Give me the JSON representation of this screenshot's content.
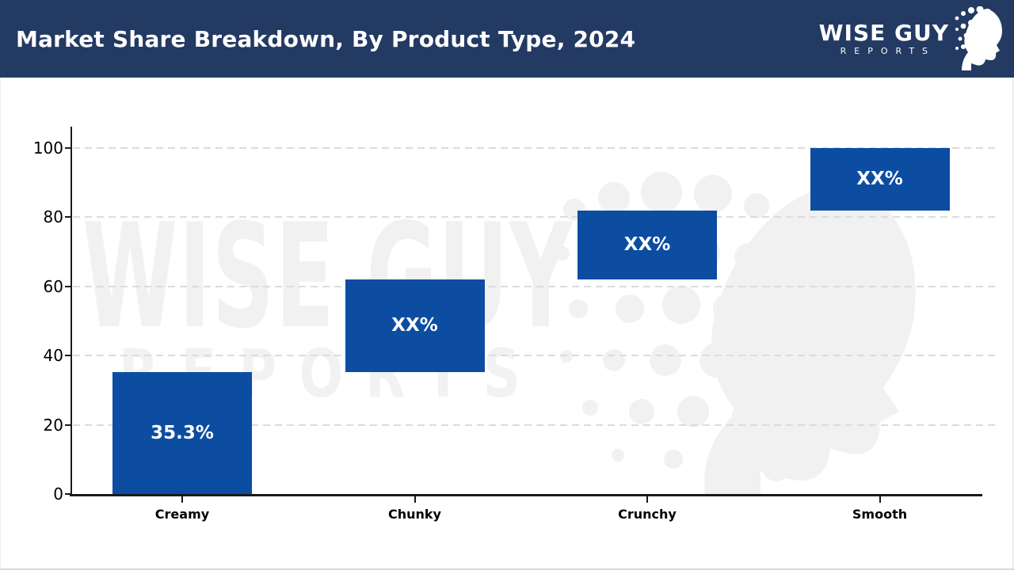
{
  "header": {
    "title": "Market Share Breakdown, By Product Type, 2024",
    "logo": {
      "name": "WISE GUY REPORTS",
      "line1": "WISE GUY",
      "line2": "REPORTS"
    }
  },
  "watermark": {
    "line1": "WISE GUY",
    "line2": "REPORTS"
  },
  "colors": {
    "header_bg": "#233a63",
    "bar": "#0c4da2",
    "bar_label": "#ffffff",
    "grid": "#dcdcdc",
    "axis": "#1a1a1a",
    "watermark": "#f1f1f1",
    "page_bg": "#ffffff"
  },
  "chart_data": {
    "type": "bar",
    "subtype": "waterfall-floating-bars",
    "title": "Market Share Breakdown, By Product Type, 2024",
    "categories": [
      "Creamy",
      "Chunky",
      "Crunchy",
      "Smooth"
    ],
    "segments": [
      {
        "category": "Creamy",
        "start": 0,
        "end": 35.3,
        "label": "35.3%"
      },
      {
        "category": "Chunky",
        "start": 35.3,
        "end": 62,
        "label": "XX%"
      },
      {
        "category": "Crunchy",
        "start": 62,
        "end": 82,
        "label": "XX%"
      },
      {
        "category": "Smooth",
        "start": 82,
        "end": 100,
        "label": "XX%"
      }
    ],
    "xlabel": "",
    "ylabel": "",
    "ylim": [
      0,
      100
    ],
    "yticks": [
      0,
      20,
      40,
      60,
      80,
      100
    ],
    "grid": "horizontal-dashed",
    "legend": "none",
    "bar_color": "#0c4da2"
  }
}
